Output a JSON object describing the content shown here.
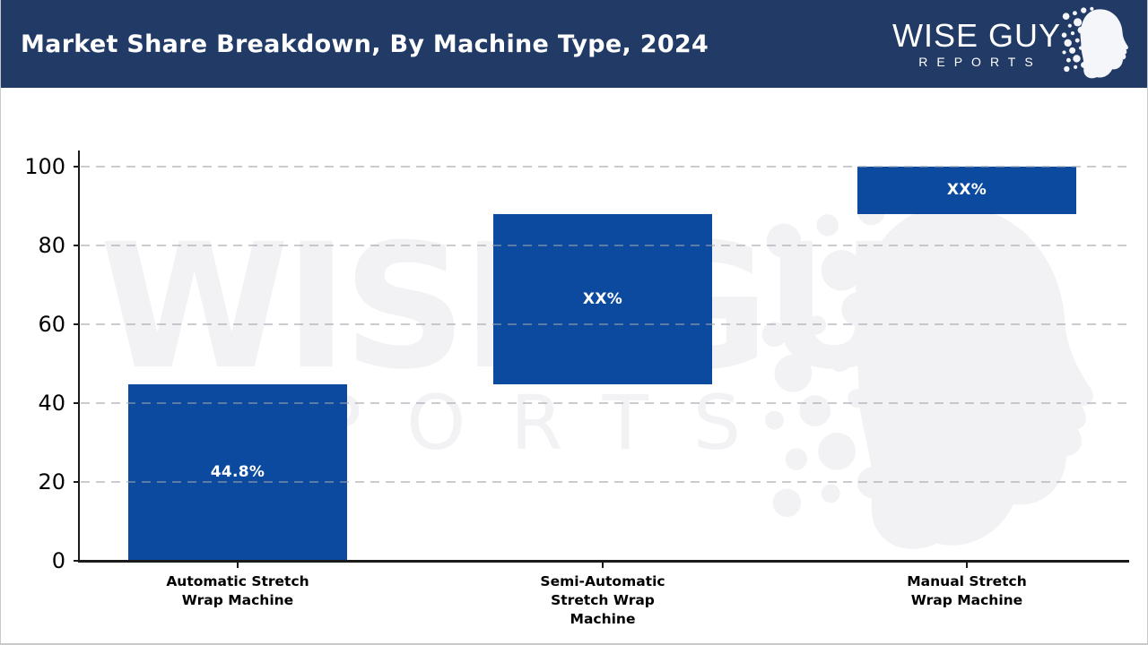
{
  "header": {
    "title": "Market Share Breakdown, By Machine Type, 2024",
    "logo": {
      "line1": "WISE GUY",
      "line2": "REPORTS"
    }
  },
  "watermark": {
    "line1": "WISE GUY",
    "line2": "REPORTS"
  },
  "colors": {
    "header_bg": "#213A66",
    "bar": "#0C4AA0",
    "grid": "#d8d8d8",
    "axis": "#1a1a1a",
    "bar_label": "#ffffff",
    "watermark": "#f2f2f4"
  },
  "chart_data": {
    "type": "bar",
    "subtype": "waterfall-breakdown",
    "title": "Market Share Breakdown, By Machine Type, 2024",
    "categories": [
      "Automatic Stretch\nWrap Machine",
      "Semi-Automatic\nStretch Wrap\nMachine",
      "Manual Stretch\nWrap Machine"
    ],
    "segments": [
      {
        "category": "Automatic Stretch Wrap Machine",
        "start": 0,
        "end": 44.8,
        "label": "44.8%"
      },
      {
        "category": "Semi-Automatic Stretch Wrap Machine",
        "start": 44.8,
        "end": 88,
        "label": "XX%"
      },
      {
        "category": "Manual Stretch Wrap Machine",
        "start": 88,
        "end": 100,
        "label": "XX%"
      }
    ],
    "yticks": [
      0,
      20,
      40,
      60,
      80,
      100
    ],
    "ylim": [
      0,
      103.5
    ],
    "xlabel": "",
    "ylabel": "",
    "grid": "horizontal-dashed",
    "legend": "none"
  }
}
